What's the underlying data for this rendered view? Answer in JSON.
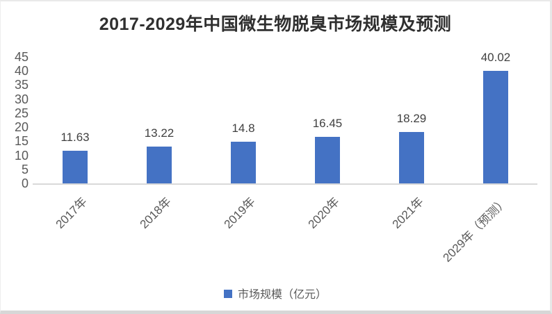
{
  "chart_data": {
    "type": "bar",
    "title": "2017-2029年中国微生物脱臭市场规模及预测",
    "categories": [
      "2017年",
      "2018年",
      "2019年",
      "2020年",
      "2021年",
      "2029年（预测）"
    ],
    "series": [
      {
        "name": "市场规模（亿元）",
        "values": [
          11.63,
          13.22,
          14.8,
          16.45,
          18.29,
          40.02
        ],
        "labels": [
          "11.63",
          "13.22",
          "14.8",
          "16.45",
          "18.29",
          "40.02"
        ],
        "color": "#4472C4"
      }
    ],
    "xlabel": "",
    "ylabel": "",
    "ylim": [
      0,
      45
    ],
    "yticks": [
      0,
      5,
      10,
      15,
      20,
      25,
      30,
      35,
      40,
      45
    ],
    "grid": false,
    "data_labels": true,
    "x_label_rotation": -45,
    "legend_position": "bottom"
  },
  "legend": {
    "items": [
      {
        "label": "市场规模（亿元）",
        "color": "#4472C4"
      }
    ]
  },
  "colors": {
    "bar": "#4472C4",
    "axis_line": "#d9d9d9",
    "tick_label": "#595959",
    "data_label": "#404040",
    "title": "#2f2f2f",
    "background": "#ffffff",
    "card_border": "#d7d7d7"
  }
}
